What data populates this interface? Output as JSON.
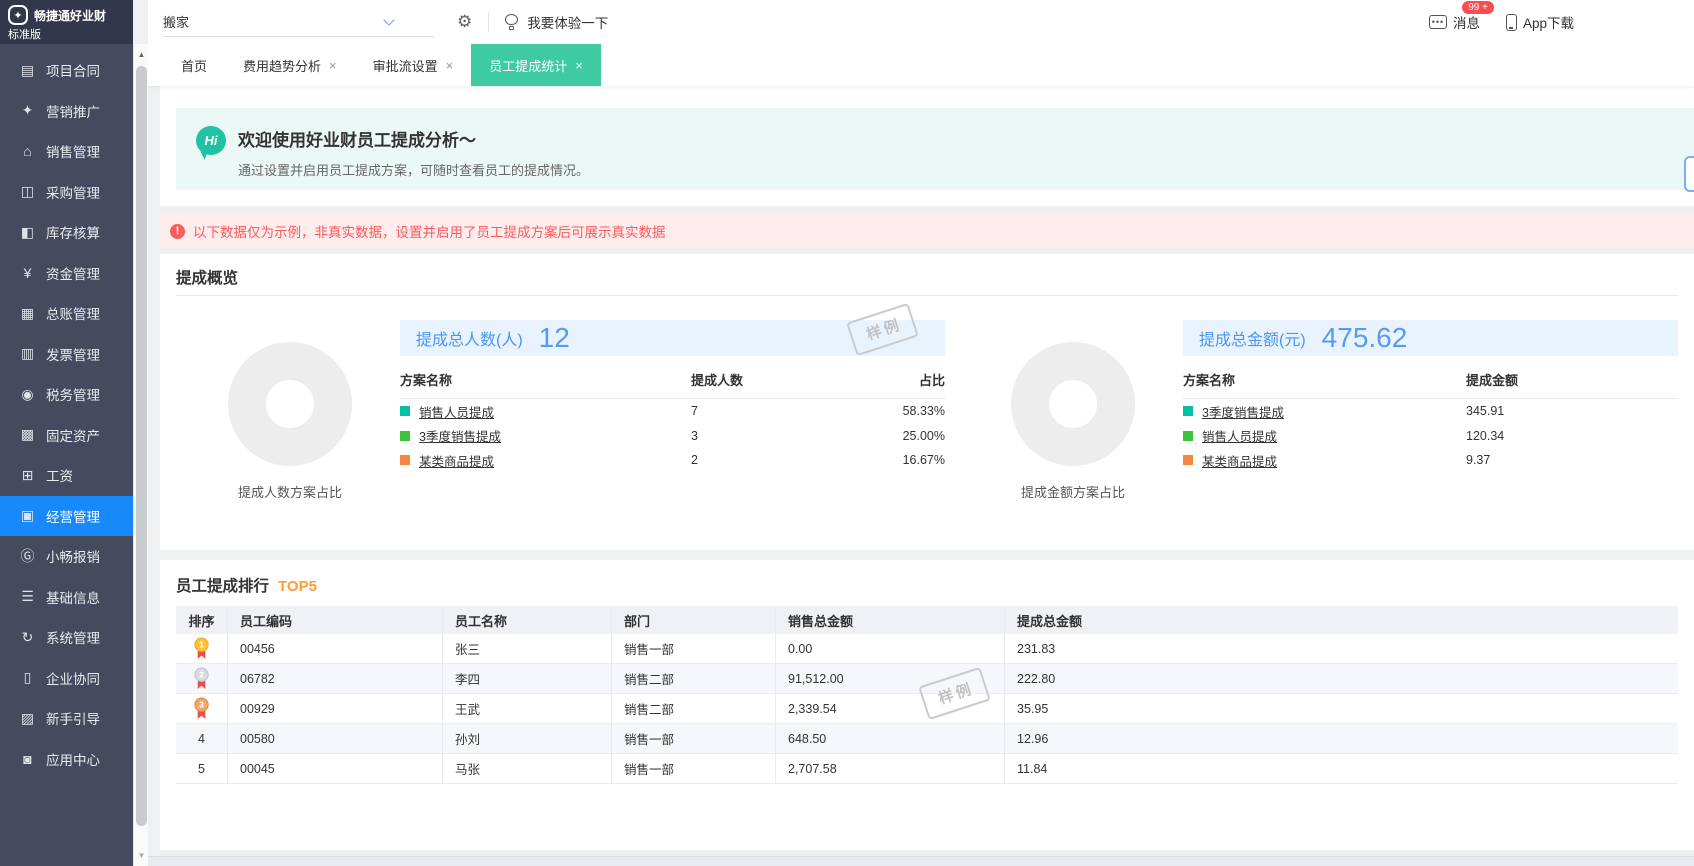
{
  "brand": {
    "name": "畅捷通好业财",
    "edition": "标准版"
  },
  "topbar": {
    "search_value": "搬家",
    "experience_label": "我要体验一下",
    "messages_label": "消息",
    "messages_badge": "99 +",
    "app_download_label": "App下载"
  },
  "tabs": [
    {
      "label": "首页",
      "closable": false,
      "active": false
    },
    {
      "label": "费用趋势分析",
      "closable": true,
      "active": false
    },
    {
      "label": "审批流设置",
      "closable": true,
      "active": false
    },
    {
      "label": "员工提成统计",
      "closable": true,
      "active": true
    }
  ],
  "sidebar": {
    "items": [
      {
        "label": "项目合同",
        "icon": "project-contract-icon",
        "glyph": "▤",
        "active": false
      },
      {
        "label": "营销推广",
        "icon": "marketing-icon",
        "glyph": "✦",
        "active": false
      },
      {
        "label": "销售管理",
        "icon": "sales-icon",
        "glyph": "⌂",
        "active": false
      },
      {
        "label": "采购管理",
        "icon": "purchase-icon",
        "glyph": "◫",
        "active": false
      },
      {
        "label": "库存核算",
        "icon": "inventory-icon",
        "glyph": "◧",
        "active": false
      },
      {
        "label": "资金管理",
        "icon": "funds-icon",
        "glyph": "¥",
        "active": false
      },
      {
        "label": "总账管理",
        "icon": "ledger-icon",
        "glyph": "▦",
        "active": false
      },
      {
        "label": "发票管理",
        "icon": "invoice-icon",
        "glyph": "▥",
        "active": false
      },
      {
        "label": "税务管理",
        "icon": "tax-icon",
        "glyph": "◉",
        "active": false
      },
      {
        "label": "固定资产",
        "icon": "fixed-assets-icon",
        "glyph": "▩",
        "active": false
      },
      {
        "label": "工资",
        "icon": "payroll-icon",
        "glyph": "⊞",
        "active": false
      },
      {
        "label": "经营管理",
        "icon": "business-mgmt-icon",
        "glyph": "▣",
        "active": true
      },
      {
        "label": "小畅报销",
        "icon": "expense-icon",
        "glyph": "Ⓖ",
        "active": false
      },
      {
        "label": "基础信息",
        "icon": "base-info-icon",
        "glyph": "☰",
        "active": false
      },
      {
        "label": "系统管理",
        "icon": "system-mgmt-icon",
        "glyph": "↻",
        "active": false
      },
      {
        "label": "企业协同",
        "icon": "collaboration-icon",
        "glyph": "▯",
        "active": false
      },
      {
        "label": "新手引导",
        "icon": "guide-icon",
        "glyph": "▨",
        "active": false
      },
      {
        "label": "应用中心",
        "icon": "app-center-icon",
        "glyph": "◙",
        "active": false
      }
    ]
  },
  "welcome": {
    "hi": "Hi",
    "title": "欢迎使用好业财员工提成分析～",
    "subtitle": "通过设置并启用员工提成方案，可随时查看员工的提成情况。"
  },
  "notice": {
    "text": "以下数据仅为示例，非真实数据，设置并启用了员工提成方案后可展示真实数据"
  },
  "overview": {
    "section_title": "提成概览",
    "watermark": "样例",
    "left": {
      "stat_label": "提成总人数(人)",
      "stat_value": "12",
      "caption": "提成人数方案占比",
      "columns": [
        "方案名称",
        "提成人数",
        "占比"
      ],
      "rows": [
        {
          "name": "销售人员提成",
          "color": "#00c1a5",
          "cells": [
            "7",
            "58.33%"
          ]
        },
        {
          "name": "3季度销售提成",
          "color": "#3dc43a",
          "cells": [
            "3",
            "25.00%"
          ]
        },
        {
          "name": "某类商品提成",
          "color": "#f6873f",
          "cells": [
            "2",
            "16.67%"
          ]
        }
      ]
    },
    "right": {
      "stat_label": "提成总金额(元)",
      "stat_value": "475.62",
      "caption": "提成金额方案占比",
      "columns": [
        "方案名称",
        "提成金额"
      ],
      "rows": [
        {
          "name": "3季度销售提成",
          "color": "#00c1a5",
          "cells": [
            "345.91"
          ]
        },
        {
          "name": "销售人员提成",
          "color": "#3dc43a",
          "cells": [
            "120.34"
          ]
        },
        {
          "name": "某类商品提成",
          "color": "#f6873f",
          "cells": [
            "9.37"
          ]
        }
      ]
    }
  },
  "ranking": {
    "title": "员工提成排行",
    "badge": "TOP5",
    "watermark": "样例",
    "columns": [
      "排序",
      "员工编码",
      "员工名称",
      "部门",
      "销售总金额",
      "提成总金额"
    ],
    "rows": [
      {
        "rank": "1",
        "medal": "gold",
        "code": "00456",
        "name": "张三",
        "dept": "销售一部",
        "sales": "0.00",
        "commission": "231.83"
      },
      {
        "rank": "2",
        "medal": "silver",
        "code": "06782",
        "name": "李四",
        "dept": "销售二部",
        "sales": "91,512.00",
        "commission": "222.80"
      },
      {
        "rank": "3",
        "medal": "bronze",
        "code": "00929",
        "name": "王武",
        "dept": "销售二部",
        "sales": "2,339.54",
        "commission": "35.95"
      },
      {
        "rank": "4",
        "medal": null,
        "code": "00580",
        "name": "孙刘",
        "dept": "销售一部",
        "sales": "648.50",
        "commission": "12.96"
      },
      {
        "rank": "5",
        "medal": null,
        "code": "00045",
        "name": "马张",
        "dept": "销售一部",
        "sales": "2,707.58",
        "commission": "11.84"
      }
    ]
  },
  "colors": {
    "accent_green": "#3ecba1",
    "sidebar_active_blue": "#1789fa",
    "stat_blue": "#559af6",
    "warn_red": "#f85c5c",
    "top5_orange": "#ff9c33",
    "medal_gold": "#ffc232",
    "medal_silver": "#d8dbe2",
    "medal_bronze": "#f2a86a",
    "ribbon_red": "#e84c4c"
  }
}
